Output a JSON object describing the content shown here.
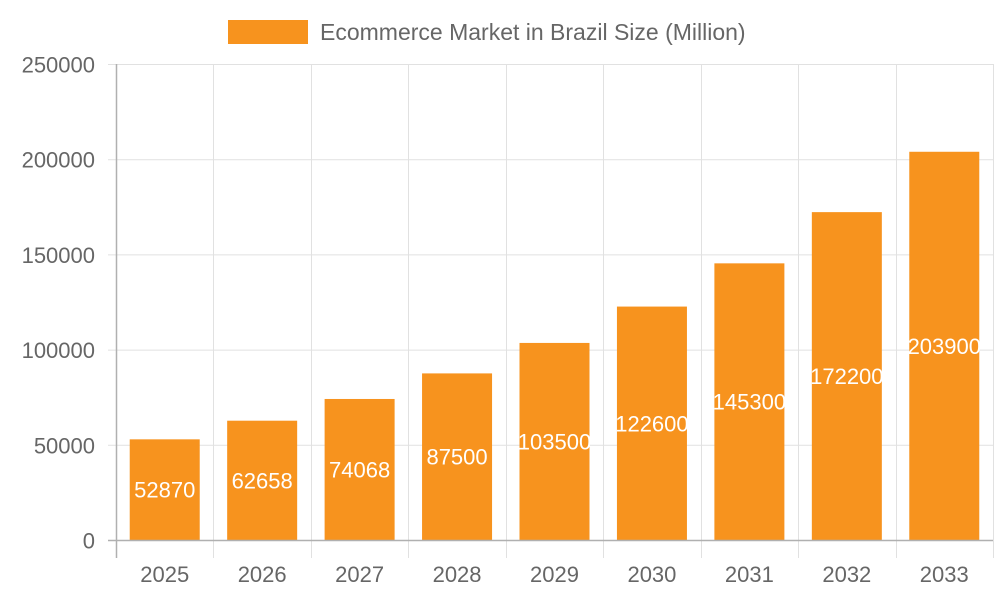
{
  "chart_data": {
    "type": "bar",
    "title": "",
    "legend": [
      {
        "label": "Ecommerce Market in Brazil Size (Million)",
        "color": "#f7931e"
      }
    ],
    "legend_position": "top",
    "categories": [
      "2025",
      "2026",
      "2027",
      "2028",
      "2029",
      "2030",
      "2031",
      "2032",
      "2033"
    ],
    "series": [
      {
        "name": "Ecommerce Market in Brazil Size (Million)",
        "values": [
          52870,
          62658,
          74068,
          87500,
          103500,
          122600,
          145300,
          172200,
          203900
        ]
      }
    ],
    "data_labels": [
      "52870",
      "62658",
      "74068",
      "87500",
      "103500",
      "122600",
      "145300",
      "172200",
      "203900"
    ],
    "xlabel": "",
    "ylabel": "",
    "ylim": [
      0,
      250000
    ],
    "yticks": [
      "0",
      "50000",
      "100000",
      "150000",
      "200000",
      "250000"
    ],
    "grid": true
  },
  "colors": {
    "bar": "#f7931e",
    "grid": "#e1e1e1",
    "axis": "#b0b0b0",
    "tick_text": "#666666",
    "data_label": "#ffffff"
  }
}
